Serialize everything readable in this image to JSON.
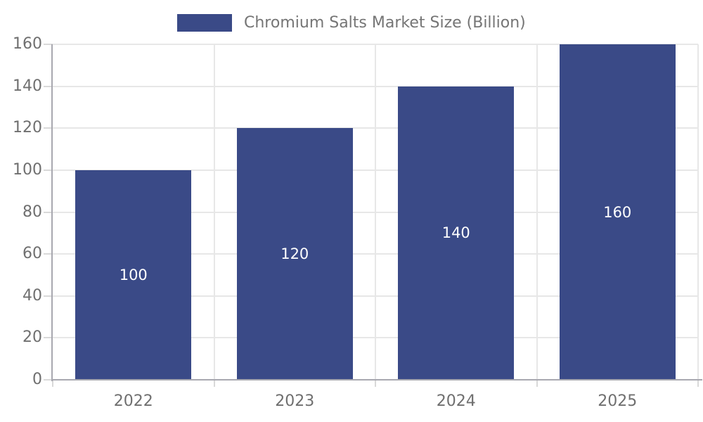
{
  "legend": {
    "label": "Chromium Salts Market Size (Billion)"
  },
  "chart_data": {
    "type": "bar",
    "title": "Chromium Salts Market Size (Billion)",
    "categories": [
      "2022",
      "2023",
      "2024",
      "2025"
    ],
    "values": [
      100,
      120,
      140,
      160
    ],
    "series": [
      {
        "name": "Chromium Salts Market Size (Billion)",
        "values": [
          100,
          120,
          140,
          160
        ]
      }
    ],
    "bar_labels": [
      "100",
      "120",
      "140",
      "160"
    ],
    "xlabel": "",
    "ylabel": "",
    "ylim": [
      0,
      160
    ],
    "yticks": [
      0,
      20,
      40,
      60,
      80,
      100,
      120,
      140,
      160
    ],
    "grid": true,
    "legend_position": "top-center",
    "colors": {
      "bar": "#3a4a87",
      "bar_label": "#ffffff",
      "axis": "#a8a8b0",
      "gridline": "#e7e7e7",
      "tick": "#d9d9d9",
      "tick_label": "#6f6f6f",
      "legend_text": "#757575",
      "background": "#ffffff"
    }
  }
}
